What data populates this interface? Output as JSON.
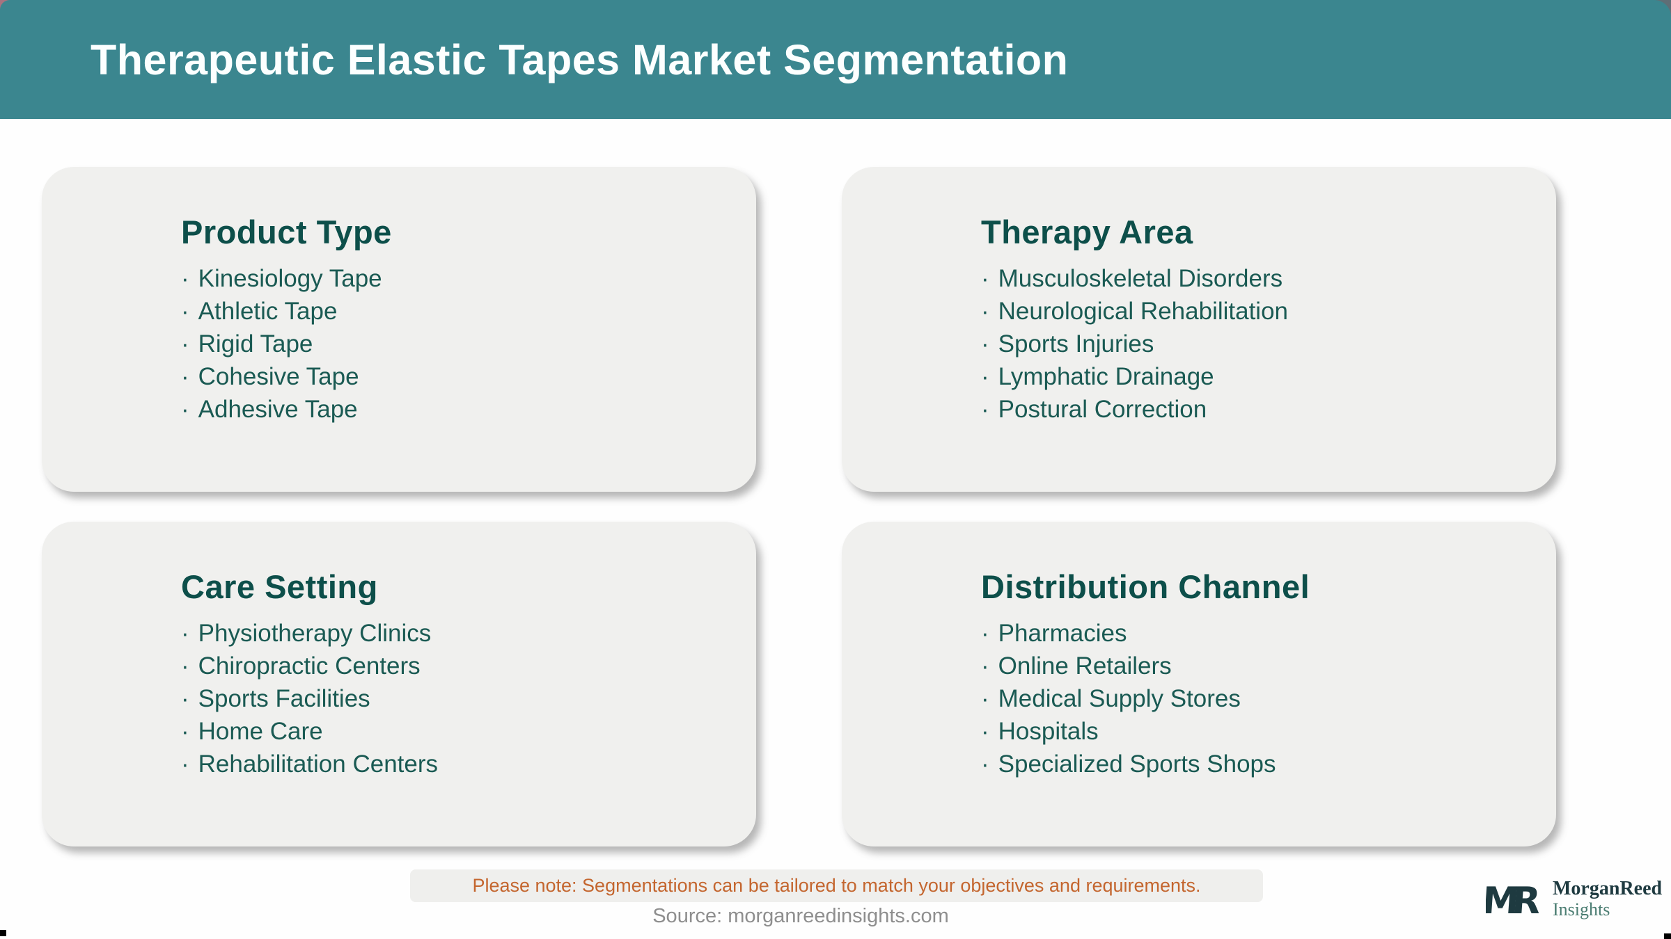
{
  "bullet_char": "·",
  "header": {
    "title": "Therapeutic Elastic Tapes Market Segmentation"
  },
  "cards": [
    {
      "title": "Product Type",
      "items": [
        "Kinesiology Tape",
        "Athletic Tape",
        "Rigid Tape",
        "Cohesive Tape",
        "Adhesive Tape"
      ]
    },
    {
      "title": "Therapy Area",
      "items": [
        "Musculoskeletal Disorders",
        "Neurological Rehabilitation",
        "Sports Injuries",
        "Lymphatic Drainage",
        "Postural Correction"
      ]
    },
    {
      "title": "Care Setting",
      "items": [
        "Physiotherapy Clinics",
        "Chiropractic Centers",
        "Sports Facilities",
        "Home Care",
        "Rehabilitation Centers"
      ]
    },
    {
      "title": "Distribution Channel",
      "items": [
        "Pharmacies",
        "Online Retailers",
        "Medical Supply Stores",
        "Hospitals",
        "Specialized Sports Shops"
      ]
    }
  ],
  "note": {
    "text": "Please note: Segmentations can be tailored to match your objectives and requirements."
  },
  "source": {
    "text": "Source: morganreedinsights.com"
  },
  "logo": {
    "monogram": "MR",
    "name_primary": "Morgan",
    "name_secondary": "Reed",
    "tagline": "Insights"
  },
  "colors": {
    "header_bg": "#3b868f",
    "header_text": "#fcffff",
    "card_bg": "#f0f0ee",
    "card_title_text": "#0d4f4a",
    "card_item_text": "#1a5a53",
    "note_bg": "#efefed",
    "note_text": "#c4662f",
    "source_text": "#8e8e8e",
    "logo_dark": "#1e3a40",
    "logo_green": "#4b7d72",
    "corner_accent_pink": "#a8737f",
    "corner_accent_slate": "#5f6e76"
  }
}
